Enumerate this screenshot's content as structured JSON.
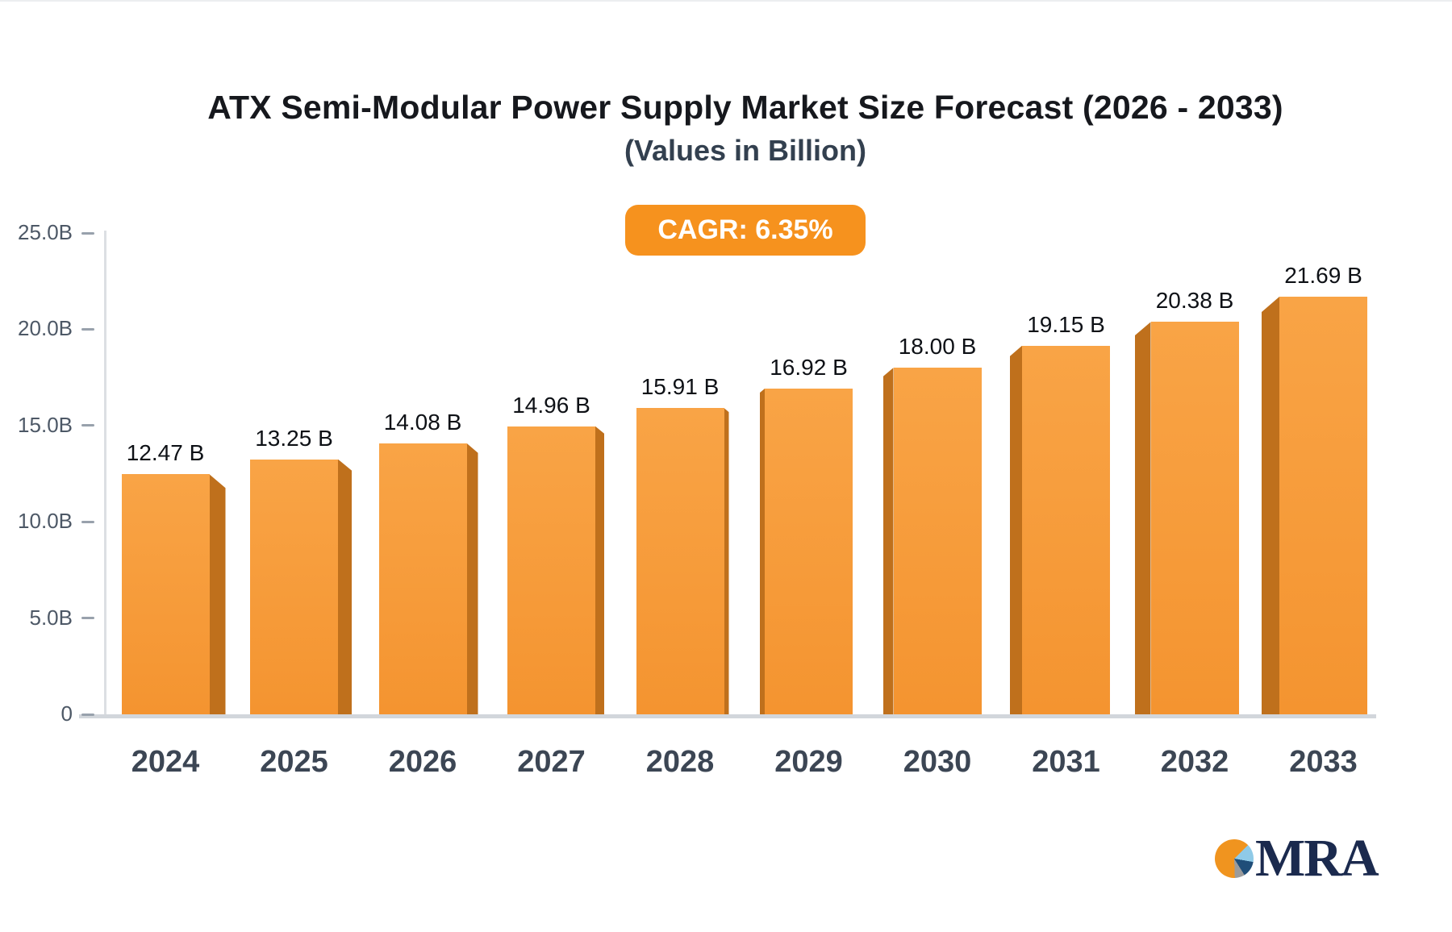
{
  "page": {
    "title": "ATX Semi-Modular Power Supply Market Size Forecast (2026 - 2033)",
    "subtitle": "(Values in Billion)"
  },
  "badge": {
    "label": "CAGR: 6.35%",
    "color": "#F6921E"
  },
  "chart_data": {
    "type": "bar",
    "title": "ATX Semi-Modular Power Supply Market Size Forecast (2026 - 2033)",
    "subtitle": "(Values in Billion)",
    "cagr_percent": 6.35,
    "categories": [
      "2024",
      "2025",
      "2026",
      "2027",
      "2028",
      "2029",
      "2030",
      "2031",
      "2032",
      "2033"
    ],
    "values": [
      12.47,
      13.25,
      14.08,
      14.96,
      15.91,
      16.92,
      18.0,
      19.15,
      20.38,
      21.69
    ],
    "value_labels": [
      "12.47 B",
      "13.25 B",
      "14.08 B",
      "14.96 B",
      "15.91 B",
      "16.92 B",
      "18.00 B",
      "19.15 B",
      "20.38 B",
      "21.69 B"
    ],
    "unit": "Billion",
    "ylim": [
      0,
      25
    ],
    "y_ticks": [
      {
        "label": "25.0B",
        "value": 25
      },
      {
        "label": "20.0B",
        "value": 20
      },
      {
        "label": "15.0B",
        "value": 15
      },
      {
        "label": "10.0B",
        "value": 10
      },
      {
        "label": "5.0B",
        "value": 5
      },
      {
        "label": "0",
        "value": 0
      }
    ],
    "grid": false,
    "legend": false,
    "bar_color": "#F79F3C",
    "bar_side_color": "#BF701C",
    "axis_color": "#d2d6db"
  },
  "logo": {
    "text": "MRA",
    "pie_colors": {
      "orange": "#F0941F",
      "light_blue": "#8FCAE7",
      "navy": "#1F4E79",
      "gray": "#9B9B9B"
    }
  }
}
